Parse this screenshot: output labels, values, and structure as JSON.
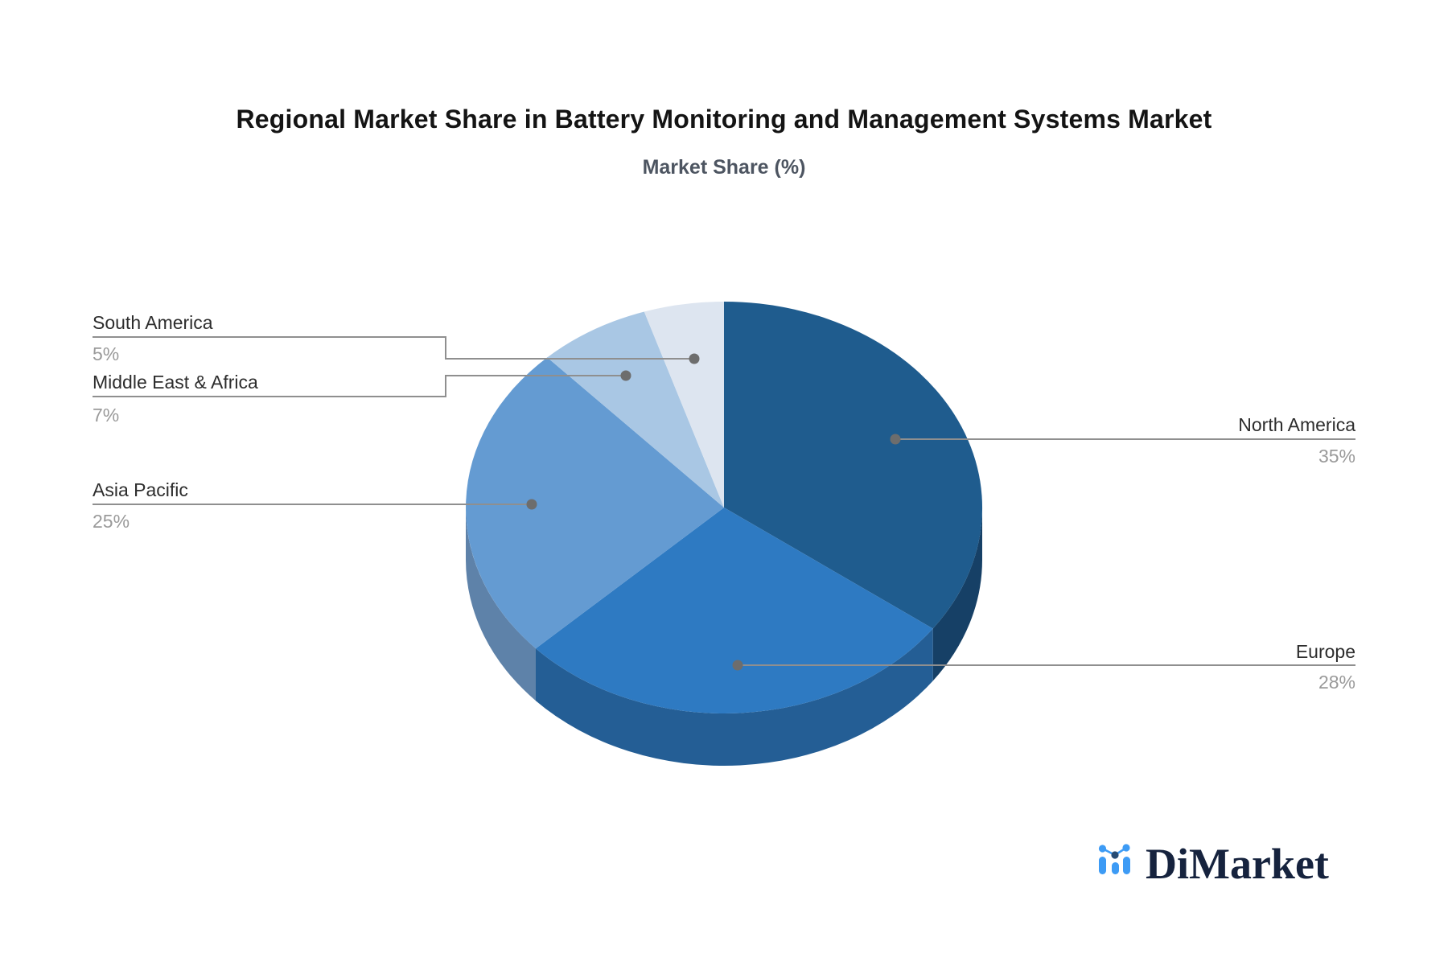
{
  "title": "Regional Market Share in Battery Monitoring and Management Systems Market",
  "subtitle": "Market Share (%)",
  "chart_data": {
    "type": "pie",
    "style": "3d",
    "title": "Market Share (%)",
    "unit": "%",
    "start_angle_deg": 0,
    "direction": "clockwise",
    "legend": "none",
    "leader_line_color": "#8f8f8f",
    "leader_dot_color": "#6d6d6d",
    "segments": [
      {
        "label": "North America",
        "value": 35,
        "pct_label": "35%",
        "color": "#1f5c8e",
        "side_color": "#164066",
        "label_side": "right"
      },
      {
        "label": "Europe",
        "value": 28,
        "pct_label": "28%",
        "color": "#2e7ac2",
        "side_color": "#245e95",
        "label_side": "right"
      },
      {
        "label": "Asia Pacific",
        "value": 25,
        "pct_label": "25%",
        "color": "#649bd2",
        "side_color": "#5e82a9",
        "label_side": "left"
      },
      {
        "label": "Middle East & Africa",
        "value": 7,
        "pct_label": "7%",
        "color": "#a9c7e4",
        "side_color": "#8aa6c2",
        "label_side": "left"
      },
      {
        "label": "South America",
        "value": 5,
        "pct_label": "5%",
        "color": "#dde5f0",
        "side_color": "#b9c3d1",
        "label_side": "left"
      }
    ]
  },
  "brand": {
    "name": "DiMarket",
    "icon": "bar-chart-logo-icon",
    "icon_color": "#3d9bf5",
    "icon_accent_color": "#274b73",
    "text_color": "#16233e"
  }
}
